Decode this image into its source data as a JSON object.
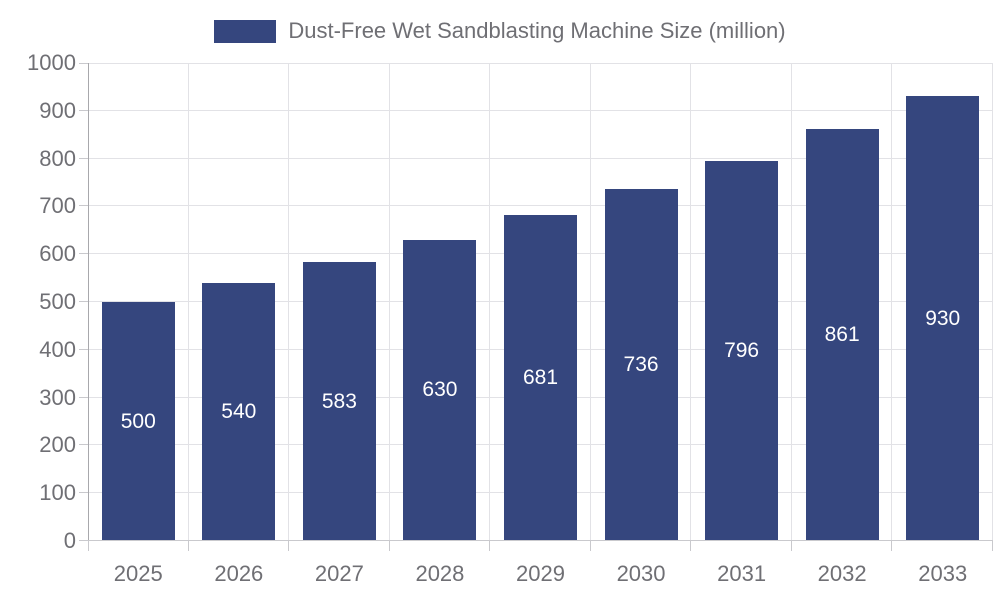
{
  "legend": {
    "label": "Dust-Free Wet Sandblasting Machine Size (million)"
  },
  "chart_data": {
    "type": "bar",
    "title": "Dust-Free Wet Sandblasting Machine Size (million)",
    "categories": [
      "2025",
      "2026",
      "2027",
      "2028",
      "2029",
      "2030",
      "2031",
      "2032",
      "2033"
    ],
    "values": [
      500,
      540,
      583,
      630,
      681,
      736,
      796,
      861,
      930
    ],
    "xlabel": "",
    "ylabel": "",
    "ylim": [
      0,
      1000
    ],
    "yticks": [
      0,
      100,
      200,
      300,
      400,
      500,
      600,
      700,
      800,
      900,
      1000
    ],
    "grid": true,
    "legend_position": "top",
    "colors": {
      "bar": "#35467E",
      "bar_label": "#FFFFFF",
      "axis_line": "#A8A8AC",
      "grid_line": "#E2E2E6",
      "tick_line": "#C9C9CD",
      "text": "#6F6F74"
    }
  }
}
